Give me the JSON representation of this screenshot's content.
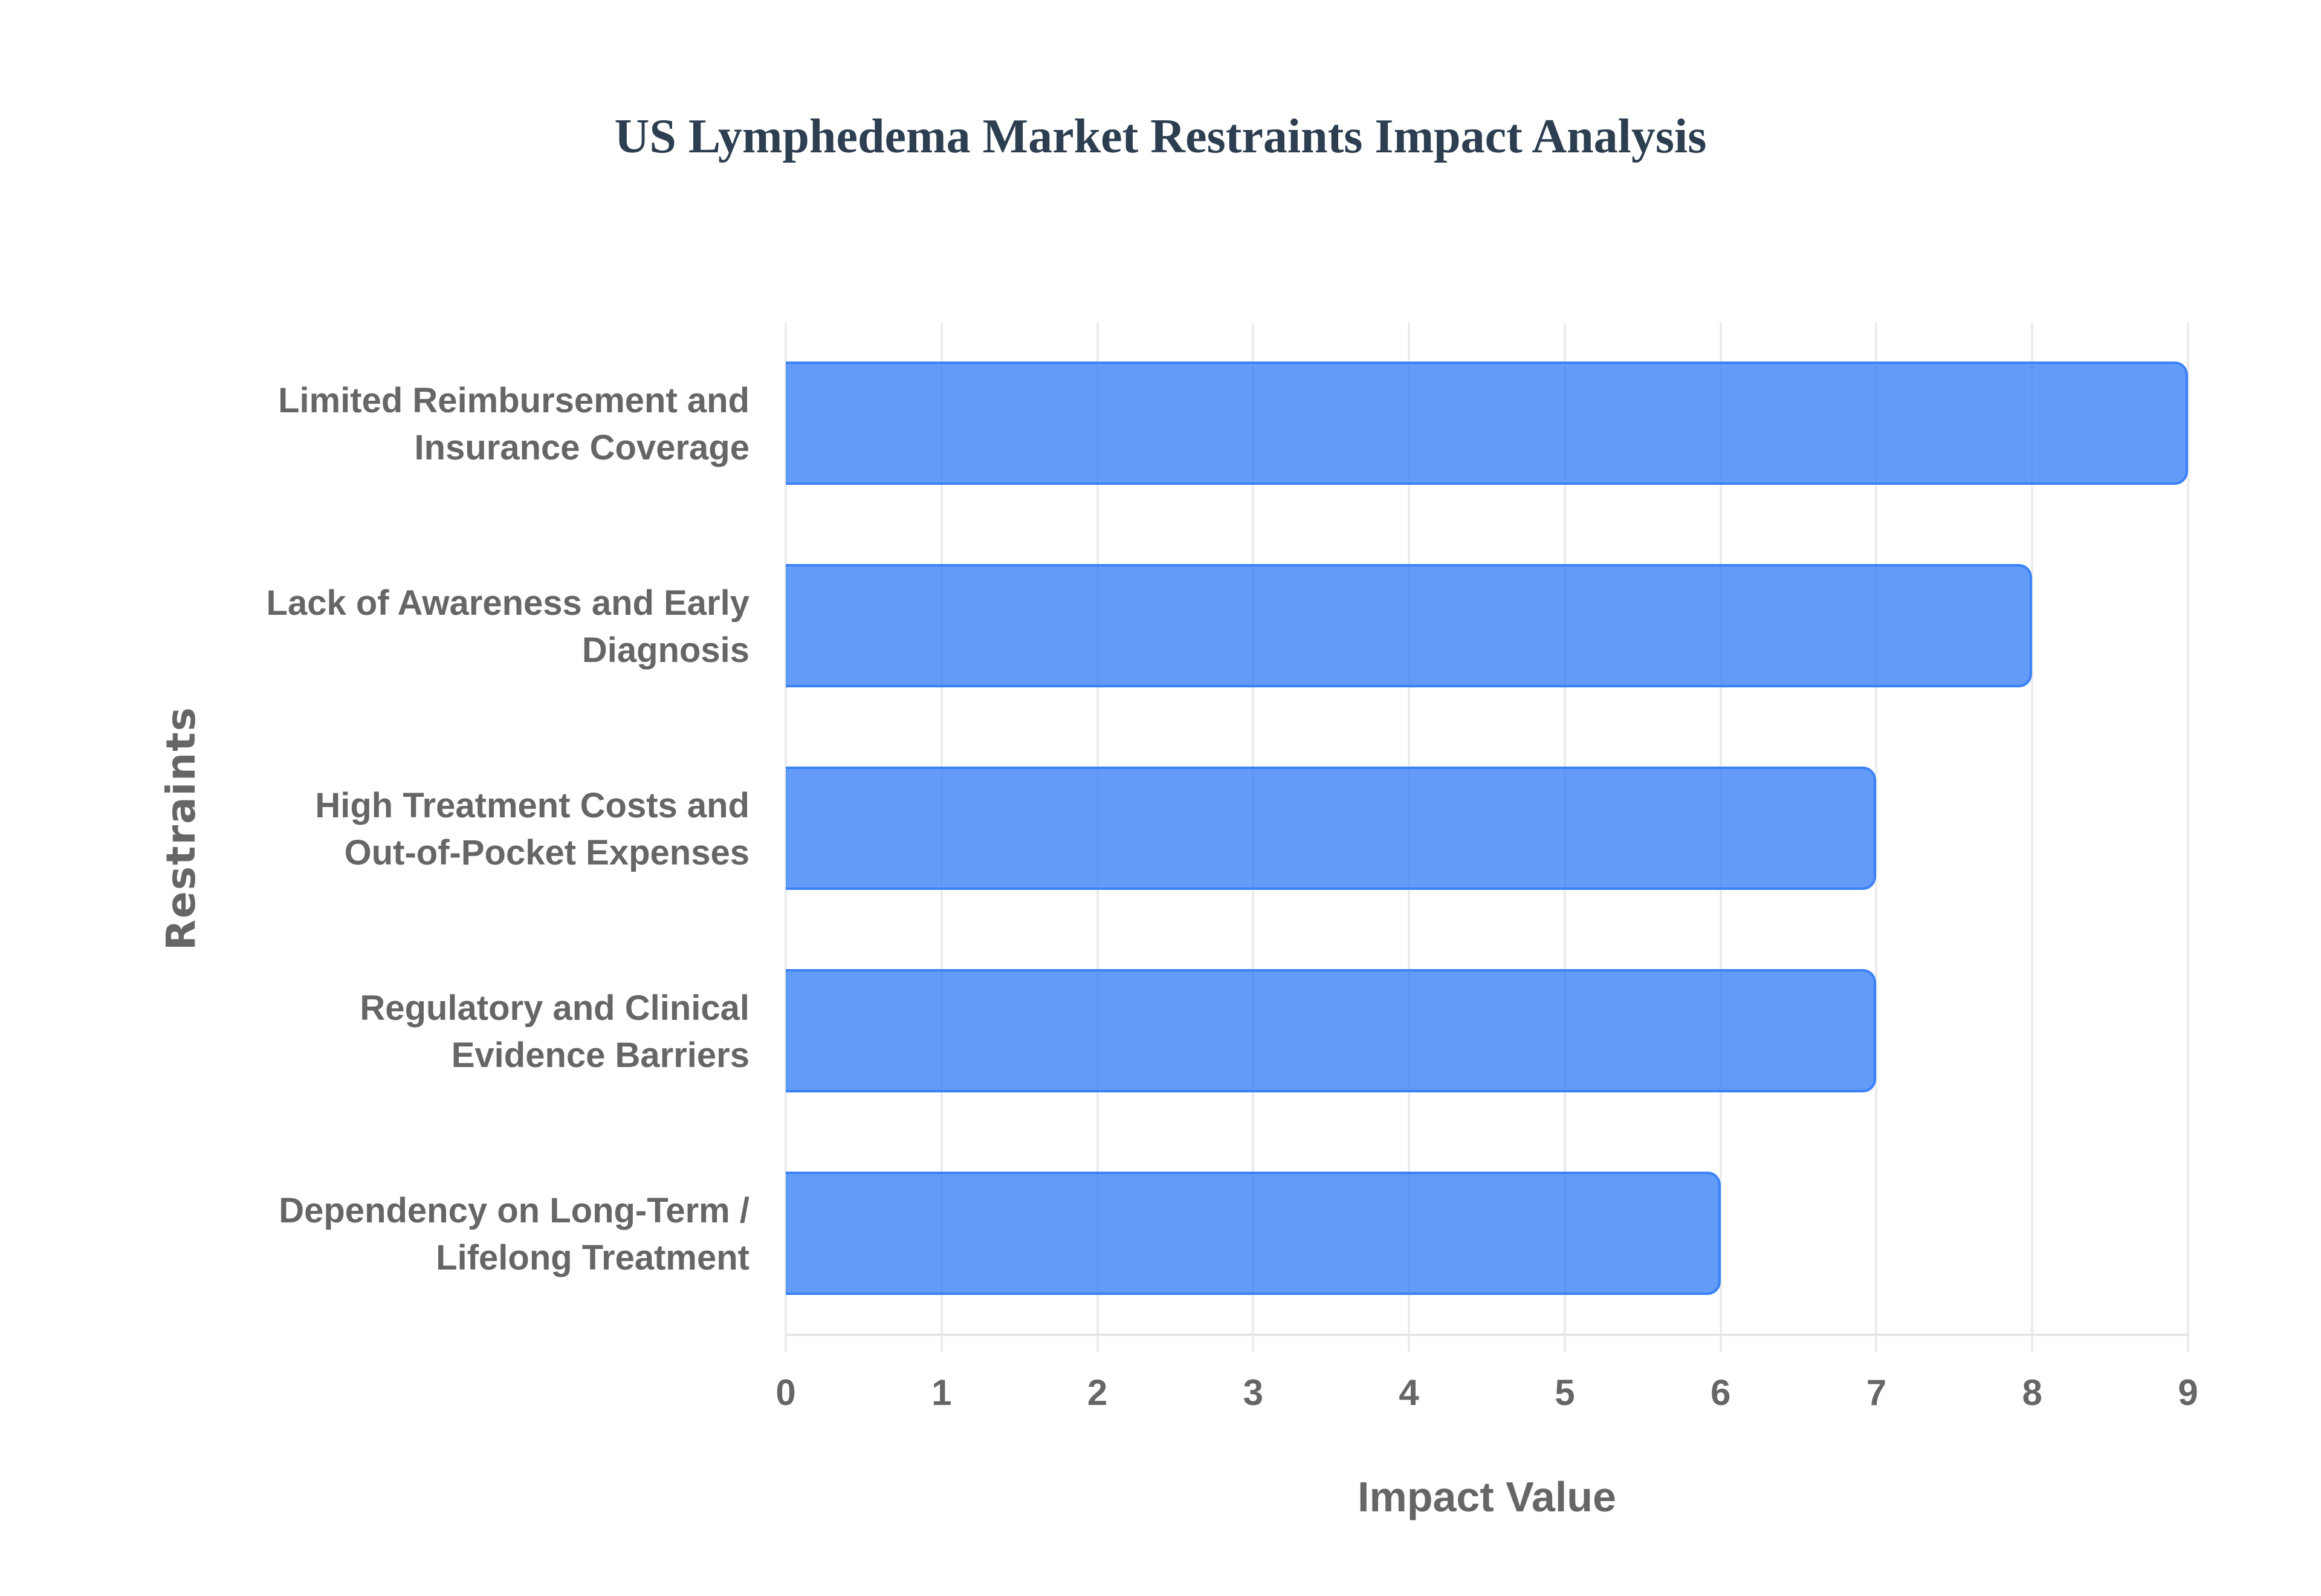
{
  "chart": {
    "title": "US Lymphedema Market Restraints Impact Analysis",
    "x_axis_title": "Impact Value",
    "y_axis_title": "Restraints",
    "x_ticks": [
      "0",
      "1",
      "2",
      "3",
      "4",
      "5",
      "6",
      "7",
      "8",
      "9"
    ],
    "bars": [
      {
        "label": "Limited Reimbursement and\nInsurance Coverage",
        "value": 9
      },
      {
        "label": "Lack of Awareness and Early\nDiagnosis",
        "value": 8
      },
      {
        "label": "High Treatment Costs and\nOut-of-Pocket Expenses",
        "value": 7
      },
      {
        "label": "Regulatory and Clinical\nEvidence Barriers",
        "value": 7
      },
      {
        "label": "Dependency on Long-Term /\nLifelong Treatment",
        "value": 6
      }
    ],
    "colors": {
      "bar_fill": "rgba(59,130,246,0.8)",
      "bar_border": "#3b82f6",
      "title": "#2c3e50",
      "axis_text": "#666666",
      "grid": "#ececec"
    }
  },
  "chart_data": {
    "type": "bar",
    "orientation": "horizontal",
    "title": "US Lymphedema Market Restraints Impact Analysis",
    "xlabel": "Impact Value",
    "ylabel": "Restraints",
    "categories": [
      "Limited Reimbursement and Insurance Coverage",
      "Lack of Awareness and Early Diagnosis",
      "High Treatment Costs and Out-of-Pocket Expenses",
      "Regulatory and Clinical Evidence Barriers",
      "Dependency on Long-Term / Lifelong Treatment"
    ],
    "values": [
      9,
      8,
      7,
      7,
      6
    ],
    "xlim": [
      0,
      9
    ],
    "x_ticks": [
      0,
      1,
      2,
      3,
      4,
      5,
      6,
      7,
      8,
      9
    ],
    "grid": true,
    "legend": null
  }
}
